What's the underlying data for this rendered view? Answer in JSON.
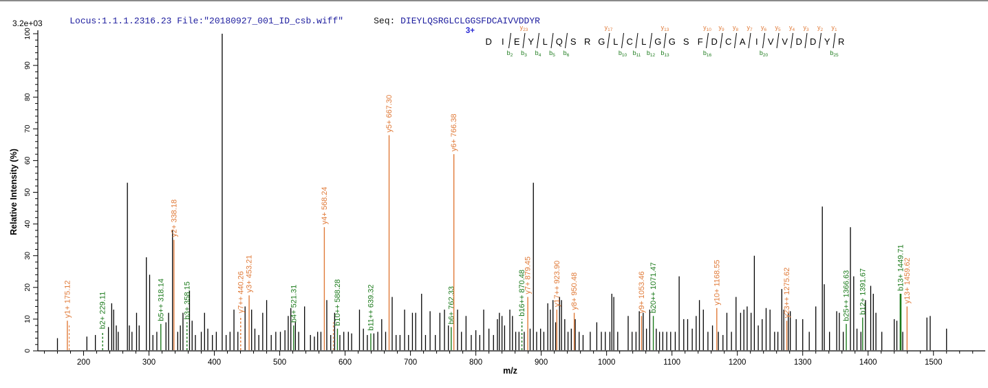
{
  "header": {
    "locus_file": "Locus:1.1.1.2316.23 File:\"20180927_001_ID_csb.wiff\"",
    "seq_label": "Seq:",
    "sequence": "DIEYLQSRGLCLGGSFDCAIVVDDYR"
  },
  "chart_data": {
    "type": "bar",
    "subtype": "ms2-fragmentation-spectrum",
    "title": "",
    "xlabel": "m/z",
    "ylabel": "Relative Intensity (%)",
    "y_scale_note": "3.2e+03",
    "xlim": [
      130,
      1575
    ],
    "ylim": [
      0,
      100
    ],
    "x_major_ticks": [
      200,
      300,
      400,
      500,
      600,
      700,
      800,
      900,
      1000,
      1100,
      1200,
      1300,
      1400,
      1500
    ],
    "x_minor_step": 20,
    "y_major_step": 10,
    "y_minor_step": 2,
    "grid": false,
    "legend": "none",
    "precursor_charge": "3+",
    "colors": {
      "y_ion": "#e07a38",
      "b_ion": "#1b7a1b",
      "peak": "#000000",
      "header_text": "#1c1c9e",
      "charge": "#2a2ad4",
      "axis": "#000000"
    },
    "peptide": {
      "residues": [
        "D",
        "I",
        "E",
        "Y",
        "L",
        "Q",
        "S",
        "R",
        "G",
        "L",
        "C",
        "L",
        "G",
        "G",
        "S",
        "F",
        "D",
        "C",
        "A",
        "I",
        "V",
        "V",
        "D",
        "D",
        "Y",
        "R"
      ],
      "y_ions": [
        {
          "site": 3,
          "label": "y23"
        },
        {
          "site": 9,
          "label": "y17"
        },
        {
          "site": 13,
          "label": "y13"
        },
        {
          "site": 16,
          "label": "y10"
        },
        {
          "site": 17,
          "label": "y9"
        },
        {
          "site": 18,
          "label": "y8"
        },
        {
          "site": 19,
          "label": "y7"
        },
        {
          "site": 20,
          "label": "y6"
        },
        {
          "site": 21,
          "label": "y5"
        },
        {
          "site": 22,
          "label": "y4"
        },
        {
          "site": 23,
          "label": "y3"
        },
        {
          "site": 24,
          "label": "y2"
        },
        {
          "site": 25,
          "label": "y1"
        }
      ],
      "b_ions": [
        {
          "site": 2,
          "label": "b2"
        },
        {
          "site": 3,
          "label": "b3"
        },
        {
          "site": 4,
          "label": "b4"
        },
        {
          "site": 5,
          "label": "b5"
        },
        {
          "site": 6,
          "label": "b6"
        },
        {
          "site": 10,
          "label": "b10"
        },
        {
          "site": 11,
          "label": "b11"
        },
        {
          "site": 12,
          "label": "b12"
        },
        {
          "site": 13,
          "label": "b13"
        },
        {
          "site": 16,
          "label": "b16"
        },
        {
          "site": 20,
          "label": "b20"
        },
        {
          "site": 25,
          "label": "b25"
        }
      ]
    },
    "annotated_peaks": [
      {
        "mz": 175.12,
        "intensity": 9.5,
        "label": "y1+ 175.12",
        "ion": "y",
        "dashed": false
      },
      {
        "mz": 229.11,
        "intensity": 6,
        "label": "b2+ 229.11",
        "ion": "b",
        "dashed": true
      },
      {
        "mz": 318.14,
        "intensity": 8.5,
        "label": "b5++ 318.14",
        "ion": "b",
        "dashed": false
      },
      {
        "mz": 338.18,
        "intensity": 35,
        "label": "y2+ 338.18",
        "ion": "y",
        "dashed": false
      },
      {
        "mz": 358.15,
        "intensity": 9,
        "label": "b3+ 358.15",
        "ion": "b",
        "dashed": true
      },
      {
        "mz": 440.26,
        "intensity": 11,
        "label": "y7++ 440.26",
        "ion": "y",
        "dashed": true
      },
      {
        "mz": 453.21,
        "intensity": 17.5,
        "label": "y3+ 453.21",
        "ion": "y",
        "dashed": false
      },
      {
        "mz": 521.31,
        "intensity": 8,
        "label": "b4+ 521.31",
        "ion": "b",
        "dashed": false
      },
      {
        "mz": 568.24,
        "intensity": 39,
        "label": "y4+ 568.24",
        "ion": "y",
        "dashed": false
      },
      {
        "mz": 588.28,
        "intensity": 7,
        "label": "b10++ 588.28",
        "ion": "b",
        "dashed": false
      },
      {
        "mz": 639.32,
        "intensity": 5.5,
        "label": "b11++ 639.32",
        "ion": "b",
        "dashed": false
      },
      {
        "mz": 667.3,
        "intensity": 68,
        "label": "y5+ 667.30",
        "ion": "y",
        "dashed": false
      },
      {
        "mz": 762.33,
        "intensity": 7.5,
        "label": "b6+ 762.33",
        "ion": "b",
        "dashed": false
      },
      {
        "mz": 766.38,
        "intensity": 62,
        "label": "y6+ 766.38",
        "ion": "y",
        "dashed": false
      },
      {
        "mz": 870.48,
        "intensity": 10,
        "label": "b16++ 870.48",
        "ion": "b",
        "dashed": true
      },
      {
        "mz": 879.45,
        "intensity": 17,
        "label": "y7+ 879.45",
        "ion": "y",
        "dashed": false
      },
      {
        "mz": 923.9,
        "intensity": 13,
        "label": "y17++ 923.90",
        "ion": "y",
        "dashed": false
      },
      {
        "mz": 950.48,
        "intensity": 12,
        "label": "y8+ 950.48",
        "ion": "y",
        "dashed": false
      },
      {
        "mz": 1053.46,
        "intensity": 11,
        "label": "y9+ 1053.46",
        "ion": "y",
        "dashed": false
      },
      {
        "mz": 1071.47,
        "intensity": 11,
        "label": "b20++ 1071.47",
        "ion": "b",
        "dashed": false
      },
      {
        "mz": 1168.55,
        "intensity": 13.5,
        "label": "y10+ 1168.55",
        "ion": "y",
        "dashed": false
      },
      {
        "mz": 1275.62,
        "intensity": 9.5,
        "label": "y23++ 1275.62",
        "ion": "y",
        "dashed": false
      },
      {
        "mz": 1366.63,
        "intensity": 8.5,
        "label": "b25++ 1366.63",
        "ion": "b",
        "dashed": false
      },
      {
        "mz": 1391.67,
        "intensity": 10.5,
        "label": "b12+ 1391.67",
        "ion": "b",
        "dashed": false
      },
      {
        "mz": 1449.71,
        "intensity": 18,
        "label": "b13+ 1449.71",
        "ion": "b",
        "dashed": false,
        "thick": true
      },
      {
        "mz": 1459.62,
        "intensity": 14,
        "label": "y13+ 1459.62",
        "ion": "y",
        "dashed": false
      }
    ],
    "unlabeled_marker_peaks": [
      {
        "mz": 178,
        "intensity": 8,
        "ion": "y",
        "dashed": true
      },
      {
        "mz": 582,
        "intensity": 9,
        "ion": "y",
        "dashed": true
      }
    ],
    "background_peaks": [
      [
        160,
        4
      ],
      [
        205,
        4.5
      ],
      [
        218,
        5
      ],
      [
        238,
        7.5
      ],
      [
        243,
        15
      ],
      [
        246,
        13
      ],
      [
        250,
        8
      ],
      [
        253,
        6
      ],
      [
        267,
        53
      ],
      [
        270,
        8
      ],
      [
        274,
        6
      ],
      [
        281,
        12
      ],
      [
        285,
        8
      ],
      [
        296,
        29.5
      ],
      [
        301,
        24
      ],
      [
        306,
        5
      ],
      [
        312,
        6
      ],
      [
        326,
        9
      ],
      [
        330,
        12
      ],
      [
        336,
        38
      ],
      [
        344,
        6
      ],
      [
        348,
        8
      ],
      [
        352,
        12
      ],
      [
        362,
        19
      ],
      [
        366,
        9.5
      ],
      [
        371,
        5
      ],
      [
        380,
        6
      ],
      [
        385,
        12
      ],
      [
        390,
        7
      ],
      [
        397,
        5
      ],
      [
        403,
        6
      ],
      [
        412,
        100
      ],
      [
        418,
        5
      ],
      [
        424,
        6
      ],
      [
        430,
        13
      ],
      [
        436,
        6
      ],
      [
        447,
        14
      ],
      [
        457,
        13
      ],
      [
        462,
        7
      ],
      [
        468,
        5
      ],
      [
        474,
        12
      ],
      [
        480,
        16
      ],
      [
        487,
        5
      ],
      [
        494,
        6
      ],
      [
        501,
        6
      ],
      [
        508,
        6.5
      ],
      [
        513,
        11
      ],
      [
        517,
        13.5
      ],
      [
        524,
        9
      ],
      [
        529,
        6
      ],
      [
        538,
        14
      ],
      [
        547,
        5
      ],
      [
        553,
        4.5
      ],
      [
        558,
        6
      ],
      [
        563,
        6
      ],
      [
        572,
        16
      ],
      [
        578,
        5
      ],
      [
        584,
        12
      ],
      [
        592,
        5
      ],
      [
        598,
        6
      ],
      [
        605,
        6
      ],
      [
        610,
        5.5
      ],
      [
        622,
        13
      ],
      [
        628,
        7
      ],
      [
        634,
        5
      ],
      [
        644,
        5.5
      ],
      [
        650,
        6
      ],
      [
        656,
        10
      ],
      [
        662,
        6
      ],
      [
        672,
        17
      ],
      [
        678,
        5
      ],
      [
        684,
        5
      ],
      [
        691,
        13
      ],
      [
        697,
        5
      ],
      [
        703,
        12
      ],
      [
        708,
        12
      ],
      [
        717,
        18
      ],
      [
        723,
        5
      ],
      [
        730,
        12.5
      ],
      [
        738,
        5
      ],
      [
        745,
        12
      ],
      [
        752,
        13
      ],
      [
        758,
        8
      ],
      [
        772,
        13
      ],
      [
        778,
        6
      ],
      [
        785,
        11
      ],
      [
        793,
        5
      ],
      [
        800,
        6.5
      ],
      [
        806,
        5
      ],
      [
        812,
        13
      ],
      [
        820,
        7
      ],
      [
        827,
        5
      ],
      [
        833,
        10
      ],
      [
        836,
        12
      ],
      [
        840,
        11
      ],
      [
        844,
        8
      ],
      [
        852,
        13
      ],
      [
        856,
        11
      ],
      [
        861,
        6
      ],
      [
        866,
        6
      ],
      [
        874,
        6
      ],
      [
        883,
        7
      ],
      [
        888,
        53
      ],
      [
        893,
        6
      ],
      [
        899,
        7
      ],
      [
        904,
        6
      ],
      [
        910,
        15
      ],
      [
        914,
        13
      ],
      [
        918,
        16
      ],
      [
        922,
        9
      ],
      [
        928,
        17
      ],
      [
        931,
        16
      ],
      [
        936,
        10
      ],
      [
        941,
        6
      ],
      [
        946,
        7
      ],
      [
        952,
        10
      ],
      [
        958,
        6
      ],
      [
        964,
        5
      ],
      [
        975,
        6
      ],
      [
        985,
        9
      ],
      [
        992,
        6
      ],
      [
        998,
        6
      ],
      [
        1005,
        6
      ],
      [
        1008,
        18
      ],
      [
        1011,
        17
      ],
      [
        1017,
        6
      ],
      [
        1033,
        11
      ],
      [
        1039,
        6
      ],
      [
        1045,
        6
      ],
      [
        1050,
        12.5
      ],
      [
        1056,
        12
      ],
      [
        1061,
        7
      ],
      [
        1066,
        13
      ],
      [
        1076,
        7
      ],
      [
        1081,
        6
      ],
      [
        1086,
        6
      ],
      [
        1092,
        6
      ],
      [
        1098,
        6
      ],
      [
        1105,
        6
      ],
      [
        1111,
        23.5
      ],
      [
        1118,
        10
      ],
      [
        1124,
        10
      ],
      [
        1131,
        7
      ],
      [
        1137,
        11
      ],
      [
        1142,
        16
      ],
      [
        1148,
        13
      ],
      [
        1155,
        6
      ],
      [
        1162,
        8
      ],
      [
        1171,
        6
      ],
      [
        1178,
        5
      ],
      [
        1184,
        12
      ],
      [
        1191,
        6
      ],
      [
        1198,
        17
      ],
      [
        1205,
        12
      ],
      [
        1210,
        13
      ],
      [
        1215,
        14
      ],
      [
        1221,
        12
      ],
      [
        1226,
        30
      ],
      [
        1232,
        8
      ],
      [
        1238,
        10
      ],
      [
        1244,
        13.5
      ],
      [
        1250,
        13
      ],
      [
        1257,
        6
      ],
      [
        1262,
        6
      ],
      [
        1268,
        19.5
      ],
      [
        1271,
        13
      ],
      [
        1278,
        12
      ],
      [
        1281,
        12.5
      ],
      [
        1290,
        10
      ],
      [
        1300,
        10
      ],
      [
        1310,
        6
      ],
      [
        1320,
        14
      ],
      [
        1330,
        45.5
      ],
      [
        1333,
        21
      ],
      [
        1341,
        6
      ],
      [
        1352,
        12.5
      ],
      [
        1356,
        12
      ],
      [
        1362,
        6
      ],
      [
        1373,
        39
      ],
      [
        1378,
        23.5
      ],
      [
        1383,
        7
      ],
      [
        1389,
        6
      ],
      [
        1396,
        16
      ],
      [
        1404,
        20.5
      ],
      [
        1408,
        18
      ],
      [
        1412,
        12
      ],
      [
        1421,
        6
      ],
      [
        1440,
        10
      ],
      [
        1444,
        9.5
      ],
      [
        1453,
        6
      ],
      [
        1490,
        10.5
      ],
      [
        1495,
        11
      ],
      [
        1520,
        7
      ]
    ]
  }
}
